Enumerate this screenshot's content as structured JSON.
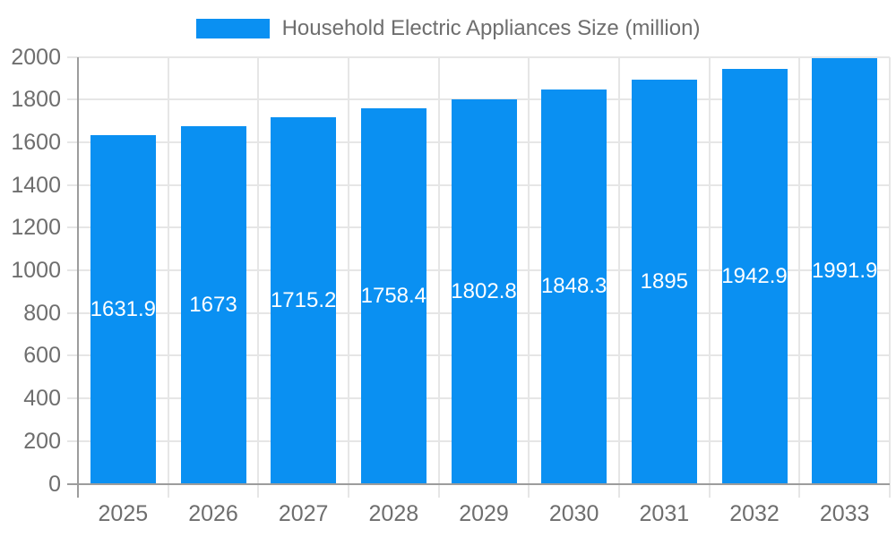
{
  "legend": {
    "label": "Household Electric Appliances Size (million)"
  },
  "chart_data": {
    "type": "bar",
    "title": "Household Electric Appliances Size (million)",
    "categories": [
      "2025",
      "2026",
      "2027",
      "2028",
      "2029",
      "2030",
      "2031",
      "2032",
      "2033"
    ],
    "values": [
      1631.9,
      1673,
      1715.2,
      1758.4,
      1802.8,
      1848.3,
      1895,
      1942.9,
      1991.9
    ],
    "value_labels": [
      "1631.9",
      "1673",
      "1715.2",
      "1758.4",
      "1802.8",
      "1848.3",
      "1895",
      "1942.9",
      "1991.9"
    ],
    "y_ticks": [
      0,
      200,
      400,
      600,
      800,
      1000,
      1200,
      1400,
      1600,
      1800,
      2000
    ],
    "ylim": [
      0,
      2000
    ],
    "xlabel": "",
    "ylabel": "",
    "grid": true,
    "legend_position": "top-center",
    "colors": {
      "bar": "#0a90f2",
      "grid": "#e6e6e6",
      "axis": "#9c9c9c",
      "tick_text": "#6e6e6e",
      "value_label_text": "#ffffff",
      "background": "#ffffff"
    }
  }
}
